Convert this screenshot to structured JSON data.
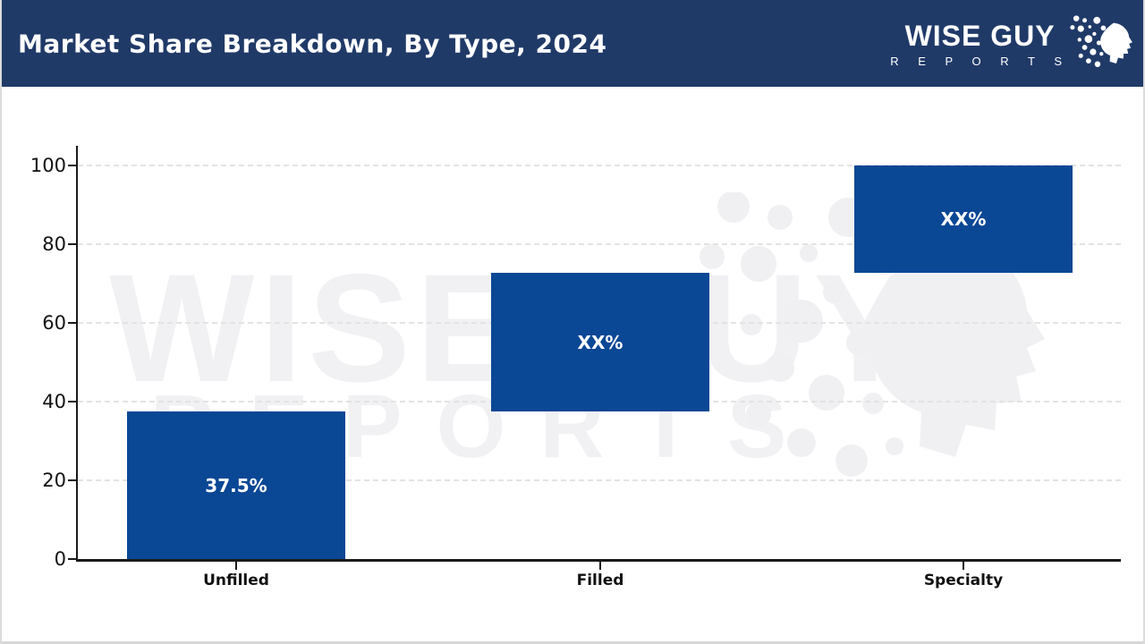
{
  "page": {
    "background": "#ffffff",
    "frame_border": "#d7d7d7"
  },
  "header": {
    "bg": "#203a68",
    "title": "Market Share Breakdown, By Type, 2024",
    "logo": {
      "name": "WISE GUY",
      "sub": "R E P O R T S"
    }
  },
  "watermark": {
    "line1": "WISE GUY",
    "line2": "REPORTS"
  },
  "chart_data": {
    "type": "bar",
    "subtype": "waterfall",
    "title": "Market Share Breakdown, By Type, 2024",
    "categories": [
      "Unfilled",
      "Filled",
      "Specialty"
    ],
    "segments": [
      {
        "category": "Unfilled",
        "start": 0,
        "end": 37.5,
        "label": "37.5%"
      },
      {
        "category": "Filled",
        "start": 37.5,
        "end": 72.7,
        "label": "XX%"
      },
      {
        "category": "Specialty",
        "start": 72.7,
        "end": 100,
        "label": "XX%"
      }
    ],
    "xlabel": "",
    "ylabel": "",
    "ylim": [
      0,
      105
    ],
    "yticks": [
      0,
      20,
      40,
      60,
      80,
      100
    ],
    "grid": "horizontal-dashed",
    "legend_position": "none",
    "bar_color": "#0a4795",
    "bar_label_color": "#ffffff"
  }
}
